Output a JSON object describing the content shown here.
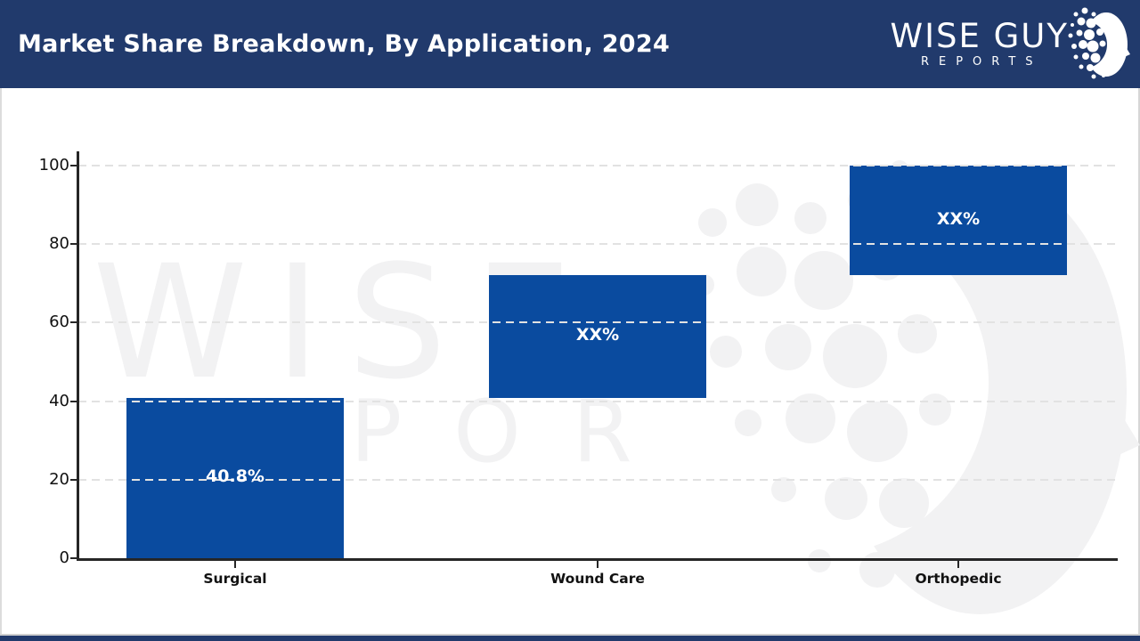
{
  "header": {
    "title": "Market Share Breakdown, By Application, 2024",
    "logo": {
      "line1": "WISE GUY",
      "line2": "REPORTS"
    }
  },
  "watermark": {
    "line1": "WISE GUY",
    "line2": "REPORTS"
  },
  "colors": {
    "header_bg": "#213a6c",
    "bar_blue": "#0a4b9f",
    "bar_label": "#ffffff",
    "gridline": "#e2e2e2",
    "axis": "#262626",
    "watermark": "#f2f2f3"
  },
  "chart_data": {
    "type": "bar",
    "subtype": "floating-waterfall",
    "title": "Market Share Breakdown, By Application, 2024",
    "categories": [
      "Surgical",
      "Wound Care",
      "Orthopedic"
    ],
    "segments": [
      {
        "category": "Surgical",
        "from": 0,
        "to": 40.8,
        "label": "40.8%"
      },
      {
        "category": "Wound Care",
        "from": 40.8,
        "to": 72,
        "label": "XX%"
      },
      {
        "category": "Orthopedic",
        "from": 72,
        "to": 100,
        "label": "XX%"
      }
    ],
    "bar_labels": [
      "40.8%",
      "XX%",
      "XX%"
    ],
    "bar_color": "#0a4b9f",
    "label_color": "#ffffff",
    "xlabel": "",
    "ylabel": "",
    "ylim": [
      0,
      100
    ],
    "yticks": [
      0,
      20,
      40,
      60,
      80,
      100
    ],
    "grid": {
      "axis": "y",
      "style": "dashed",
      "above_bars": true
    },
    "legend": null
  }
}
